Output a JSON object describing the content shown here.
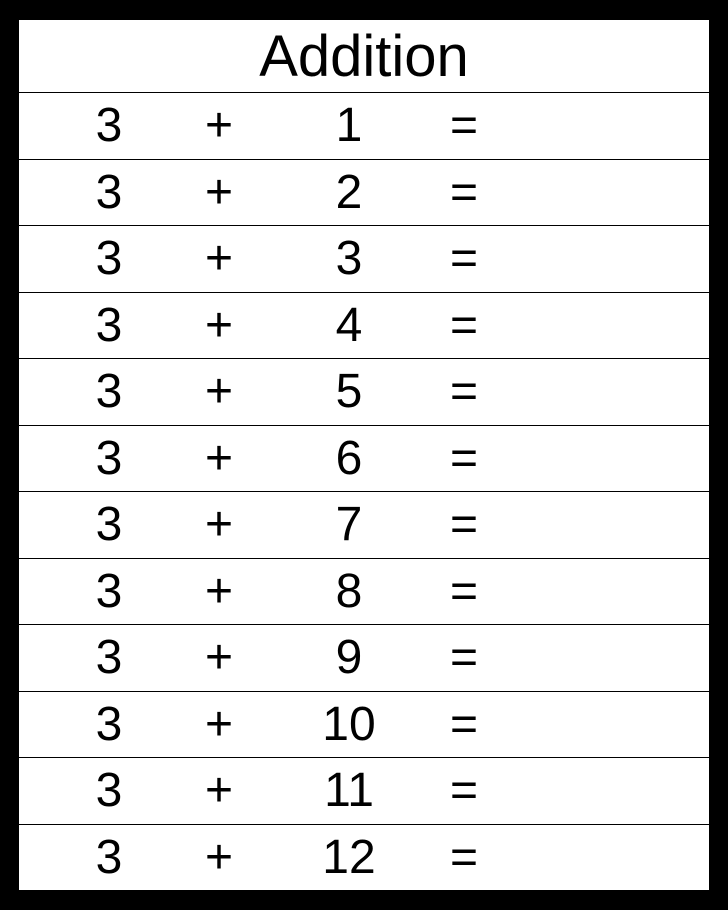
{
  "worksheet": {
    "title": "Addition",
    "type": "table",
    "background_color": "#000000",
    "sheet_color": "#ffffff",
    "border_color": "#000000",
    "font_family": "Comic Sans MS",
    "title_fontsize": 58,
    "cell_fontsize": 48,
    "columns": [
      "operand1",
      "operator",
      "operand2",
      "equals",
      "answer"
    ],
    "rows": [
      {
        "operand1": "3",
        "operator": "+",
        "operand2": "1",
        "equals": "=",
        "answer": ""
      },
      {
        "operand1": "3",
        "operator": "+",
        "operand2": "2",
        "equals": "=",
        "answer": ""
      },
      {
        "operand1": "3",
        "operator": "+",
        "operand2": "3",
        "equals": "=",
        "answer": ""
      },
      {
        "operand1": "3",
        "operator": "+",
        "operand2": "4",
        "equals": "=",
        "answer": ""
      },
      {
        "operand1": "3",
        "operator": "+",
        "operand2": "5",
        "equals": "=",
        "answer": ""
      },
      {
        "operand1": "3",
        "operator": "+",
        "operand2": "6",
        "equals": "=",
        "answer": ""
      },
      {
        "operand1": "3",
        "operator": "+",
        "operand2": "7",
        "equals": "=",
        "answer": ""
      },
      {
        "operand1": "3",
        "operator": "+",
        "operand2": "8",
        "equals": "=",
        "answer": ""
      },
      {
        "operand1": "3",
        "operator": "+",
        "operand2": "9",
        "equals": "=",
        "answer": ""
      },
      {
        "operand1": "3",
        "operator": "+",
        "operand2": "10",
        "equals": "=",
        "answer": ""
      },
      {
        "operand1": "3",
        "operator": "+",
        "operand2": "11",
        "equals": "=",
        "answer": ""
      },
      {
        "operand1": "3",
        "operator": "+",
        "operand2": "12",
        "equals": "=",
        "answer": ""
      }
    ]
  }
}
